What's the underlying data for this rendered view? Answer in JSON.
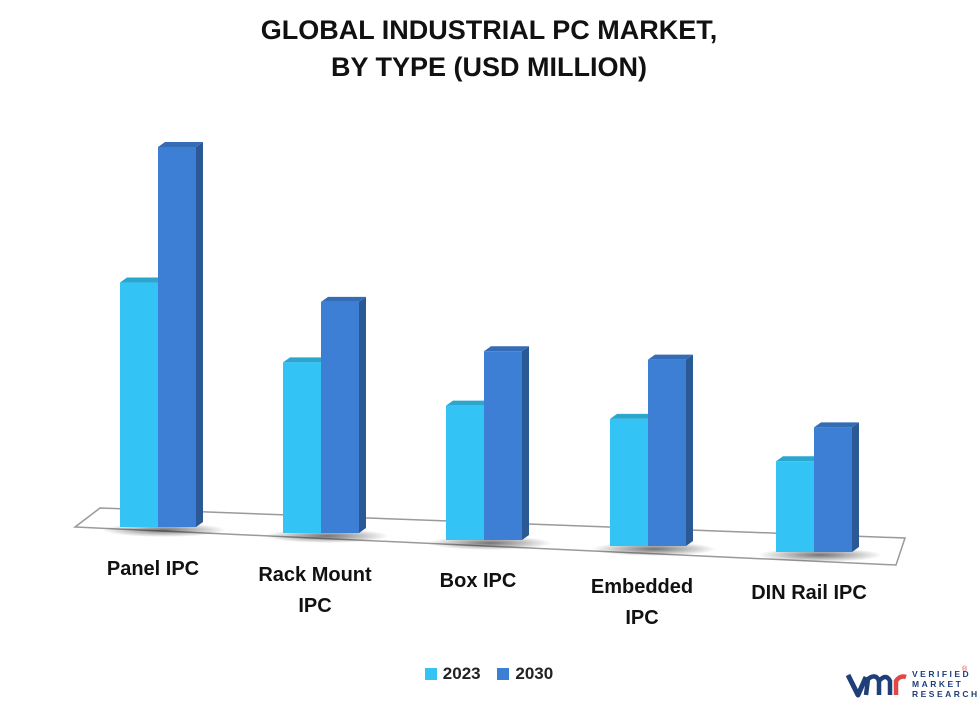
{
  "chart_data": {
    "type": "bar",
    "title_lines": [
      "GLOBAL INDUSTRIAL PC MARKET,",
      "BY TYPE (USD MILLION)"
    ],
    "categories": [
      [
        "Panel IPC"
      ],
      [
        "Rack Mount",
        "IPC"
      ],
      [
        "Box IPC"
      ],
      [
        "Embedded",
        "IPC"
      ],
      [
        "DIN Rail IPC"
      ]
    ],
    "series": [
      {
        "name": "2023",
        "values": [
          1010,
          705,
          555,
          525,
          375
        ],
        "color": "#33c3f4"
      },
      {
        "name": "2030",
        "values": [
          1570,
          955,
          780,
          770,
          515
        ],
        "color": "#3e7fd6"
      }
    ],
    "ylim": [
      0,
      1600
    ],
    "grid": false,
    "legend_position": "bottom"
  },
  "brand": {
    "logo_letters": "vmr",
    "text_lines": [
      "VERIFIED",
      "MARKET",
      "RESEARCH"
    ],
    "registered": "®",
    "colors": {
      "v": "#1f3f78",
      "m": "#1f3f78",
      "r": "#e04848"
    }
  }
}
